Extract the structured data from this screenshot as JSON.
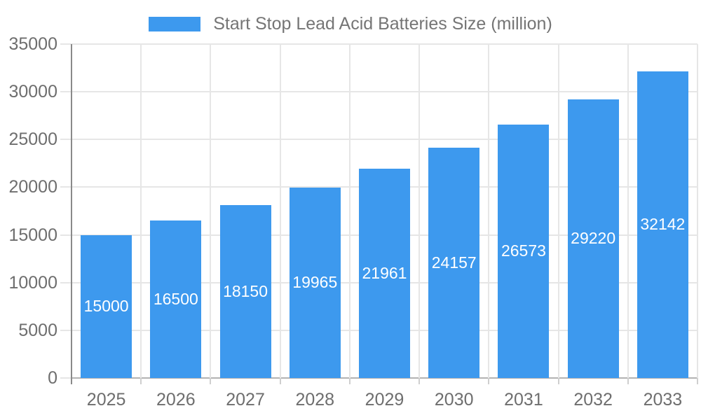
{
  "legend": {
    "label": "Start Stop Lead Acid Batteries Size (million)"
  },
  "chart_data": {
    "type": "bar",
    "title": "Start Stop Lead Acid Batteries Size (million)",
    "categories": [
      "2025",
      "2026",
      "2027",
      "2028",
      "2029",
      "2030",
      "2031",
      "2032",
      "2033"
    ],
    "values": [
      15000,
      16500,
      18150,
      19965,
      21961,
      24157,
      26573,
      29220,
      32142
    ],
    "series_name": "Start Stop Lead Acid Batteries Size (million)",
    "xlabel": "",
    "ylabel": "",
    "ylim": [
      0,
      35000
    ],
    "ytick_step": 5000,
    "yticks": [
      0,
      5000,
      10000,
      15000,
      20000,
      25000,
      30000,
      35000
    ],
    "grid": true,
    "legend_position": "top",
    "value_labels": "centered-inside-bars"
  },
  "colors": {
    "bar": "#3D99EE",
    "bar_value_text": "#FFFFFF",
    "axis_text": "#6E6E6E",
    "legend_text": "#757575",
    "gridline": "#E6E6E6",
    "tick": "#CFCFCF",
    "baseline": "#B3B3B3",
    "axis_line": "#8A8A8A",
    "background": "#FFFFFF"
  }
}
